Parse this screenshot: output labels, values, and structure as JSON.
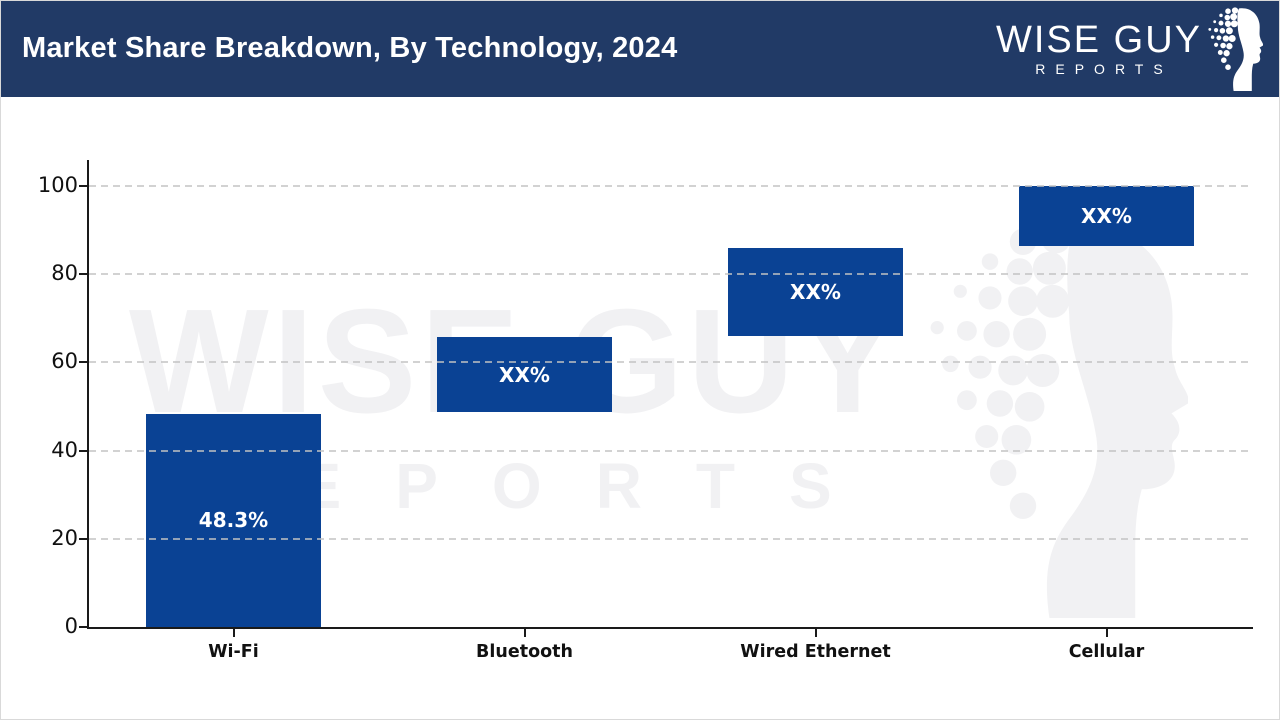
{
  "header": {
    "title": "Market Share Breakdown, By Technology, 2024",
    "logo": {
      "line1": "WISE GUY",
      "line2": "REPORTS"
    }
  },
  "watermark": {
    "line1": "WISE GUY",
    "line2": "REPORTS"
  },
  "colors": {
    "header_bg": "#213a66",
    "bar_blue": "#0a4294",
    "grid_gray": "#d9d9d9",
    "watermark_gray": "#f1f1f3",
    "axis_black": "#1a1a1a",
    "value_label_white": "#ffffff"
  },
  "chart_data": {
    "type": "bar",
    "subtype": "waterfall",
    "title": "Market Share Breakdown, By Technology, 2024",
    "categories": [
      "Wi-Fi",
      "Bluetooth",
      "Wired Ethernet",
      "Cellular"
    ],
    "segments": [
      {
        "category": "Wi-Fi",
        "start": 0,
        "end": 48.3,
        "label": "48.3%"
      },
      {
        "category": "Bluetooth",
        "start": 48.7,
        "end": 65.8,
        "label": "XX%"
      },
      {
        "category": "Wired Ethernet",
        "start": 66.0,
        "end": 86.0,
        "label": "XX%"
      },
      {
        "category": "Cellular",
        "start": 86.3,
        "end": 100,
        "label": "XX%"
      }
    ],
    "xlabel": "",
    "ylabel": "",
    "yticks": [
      0,
      20,
      40,
      60,
      80,
      100
    ],
    "ylim": [
      0,
      105.5
    ],
    "grid": "horizontal-dashed",
    "legend": "none"
  }
}
